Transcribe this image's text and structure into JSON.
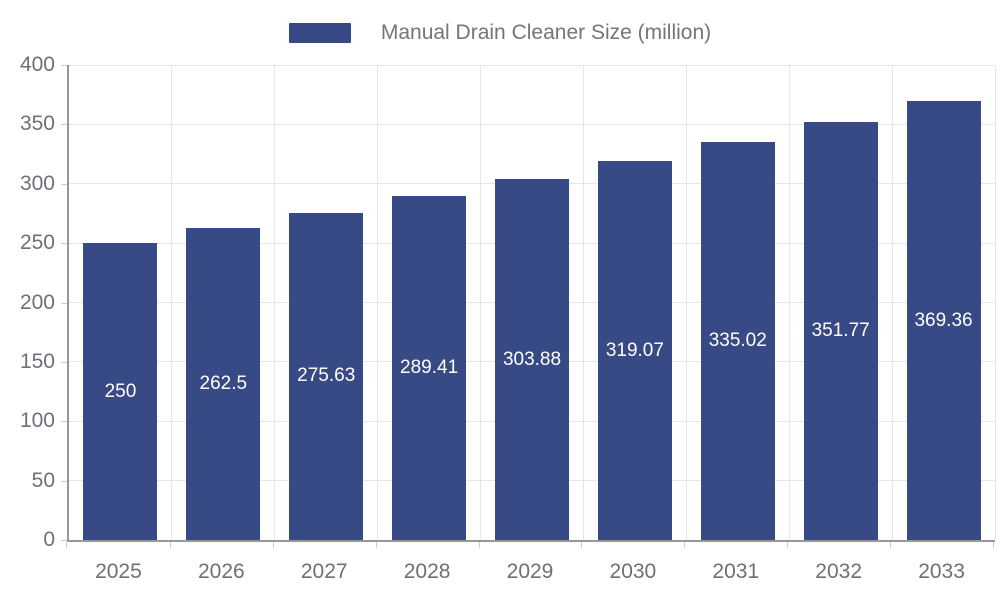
{
  "legend": {
    "label": "Manual Drain Cleaner Size (million)"
  },
  "colors": {
    "bar": "#384a85",
    "axis": "#969696",
    "grid": "#e6e6ea",
    "tick": "#cccccc",
    "tick_text": "#6e7079",
    "legend_text": "#757575",
    "value_label": "#ffffff",
    "background": "#ffffff"
  },
  "chart_data": {
    "type": "bar",
    "title": "Manual Drain Cleaner Size (million)",
    "categories": [
      "2025",
      "2026",
      "2027",
      "2028",
      "2029",
      "2030",
      "2031",
      "2032",
      "2033"
    ],
    "values": [
      250,
      262.5,
      275.63,
      289.41,
      303.88,
      319.07,
      335.02,
      351.77,
      369.36
    ],
    "value_labels": [
      "250",
      "262.5",
      "275.63",
      "289.41",
      "303.88",
      "319.07",
      "335.02",
      "351.77",
      "369.36"
    ],
    "xlabel": "",
    "ylabel": "",
    "ylim": [
      0,
      400
    ],
    "yticks": [
      0,
      50,
      100,
      150,
      200,
      250,
      300,
      350,
      400
    ],
    "grid": true,
    "legend_position": "top",
    "value_label_position": "bar-middle"
  }
}
